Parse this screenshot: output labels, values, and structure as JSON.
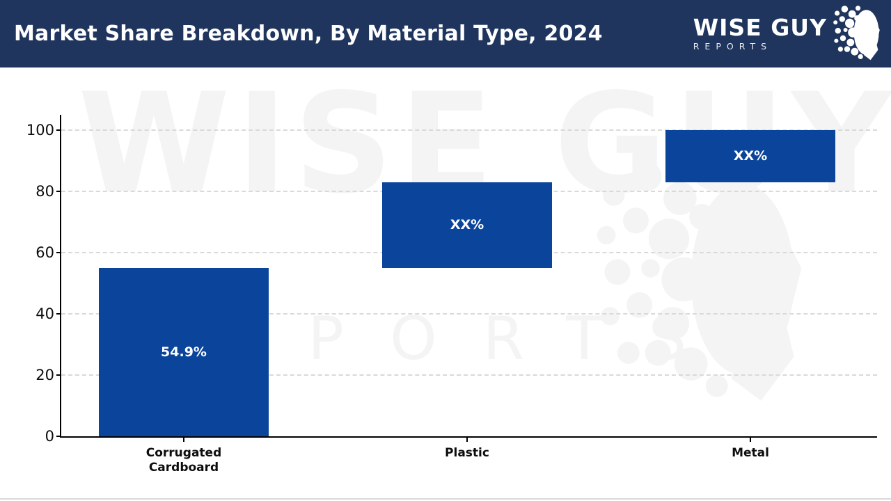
{
  "header": {
    "title": "Market Share Breakdown, By Material Type, 2024",
    "logo": {
      "wordmark": "WISE GUY",
      "subtitle": "REPORTS"
    }
  },
  "watermark": {
    "wordmark": "WISE GUY",
    "subtitle": "REPORTS"
  },
  "chart_data": {
    "type": "bar",
    "subtype": "stacked-waterfall-segments",
    "title": "Market Share Breakdown, By Material Type, 2024",
    "categories": [
      "Corrugated Cardboard",
      "Plastic",
      "Metal"
    ],
    "bars": [
      {
        "category": "Corrugated Cardboard",
        "start": 0,
        "end": 54.9,
        "label": "54.9%"
      },
      {
        "category": "Plastic",
        "start": 55,
        "end": 83,
        "label": "XX%"
      },
      {
        "category": "Metal",
        "start": 83,
        "end": 100,
        "label": "XX%"
      }
    ],
    "yticks": [
      0,
      20,
      40,
      60,
      80,
      100
    ],
    "ylim": [
      0,
      105
    ],
    "xlabel": "",
    "ylabel": "",
    "grid": "horizontal-dashed",
    "legend": "none",
    "bar_color": "#0a449b",
    "colors": {
      "header_bg": "#1f355e",
      "axis": "#000000",
      "grid": "#d9d9d9",
      "watermark": "#f4f4f4",
      "label_on_bar": "#ffffff",
      "tick_text": "#0d0d0d"
    }
  }
}
